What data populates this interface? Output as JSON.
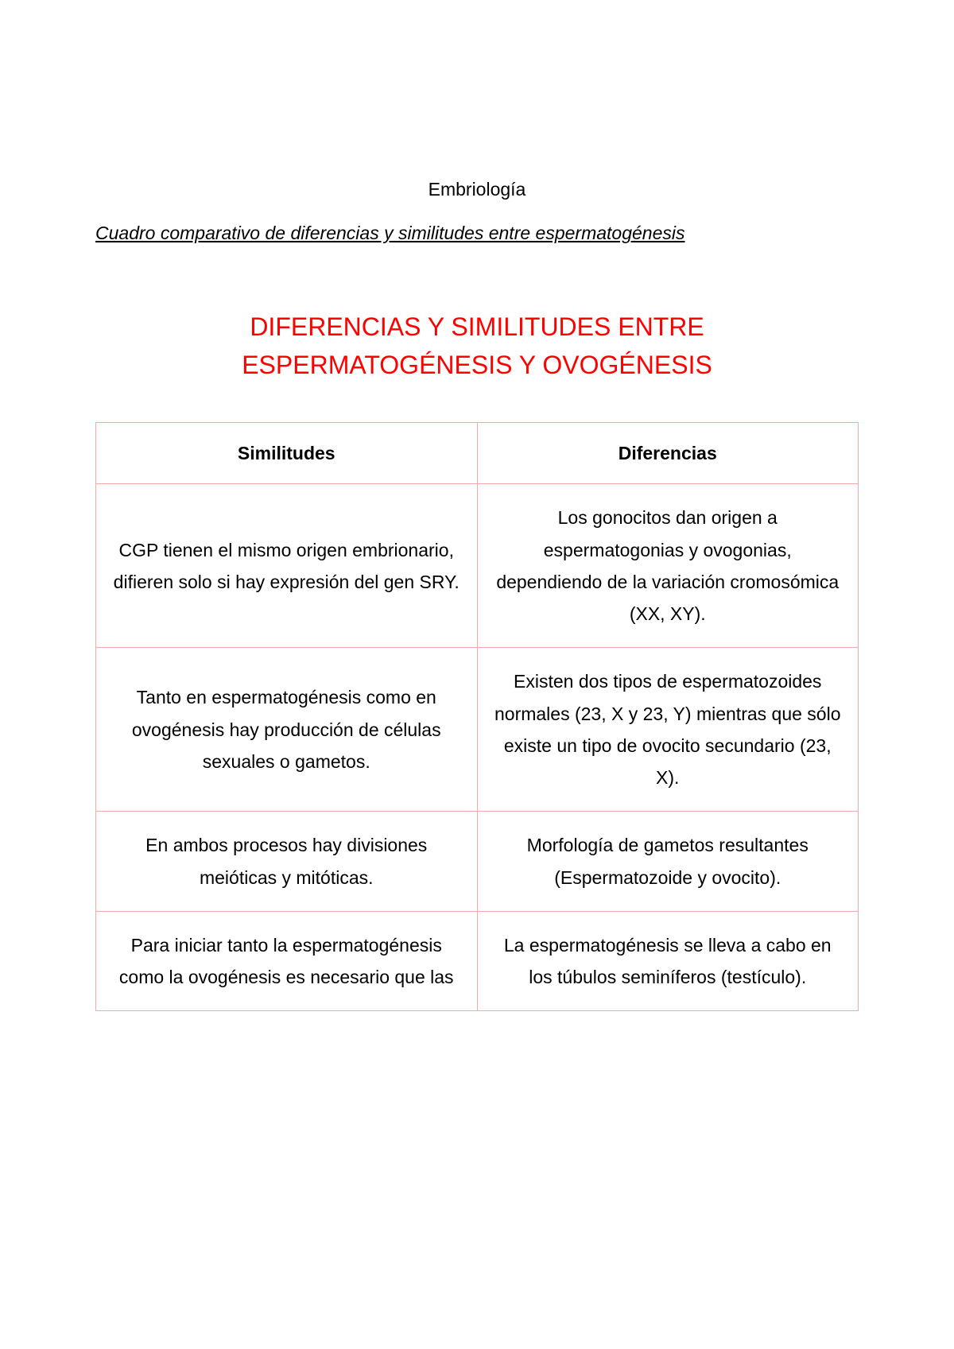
{
  "document": {
    "topic": "Embriología",
    "subtitle": "Cuadro comparativo de diferencias y similitudes entre espermatogénesis",
    "mainTitle": "DIFERENCIAS Y SIMILITUDES ENTRE ESPERMATOGÉNESIS Y OVOGÉNESIS",
    "colors": {
      "title": "#ff0000",
      "text": "#000000",
      "border": "#f4a9a9",
      "background": "#ffffff"
    },
    "typography": {
      "topic_fontsize": 23,
      "subtitle_fontsize": 23,
      "title_fontsize": 32,
      "body_fontsize": 23,
      "font_family": "Arial"
    },
    "table": {
      "type": "table",
      "columns": [
        "Similitudes",
        "Diferencias"
      ],
      "rows": [
        [
          "CGP tienen el mismo origen embrionario, difieren solo si hay expresión del gen SRY.",
          "Los gonocitos dan origen a espermatogonias y ovogonias, dependiendo de la variación cromosómica (XX, XY)."
        ],
        [
          "Tanto en espermatogénesis como en ovogénesis hay producción de células sexuales o gametos.",
          "Existen dos tipos de espermatozoides normales (23, X y 23, Y) mientras que sólo existe un tipo de ovocito secundario (23, X)."
        ],
        [
          "En ambos procesos hay divisiones meióticas y mitóticas.",
          "Morfología de gametos resultantes (Espermatozoide y ovocito)."
        ],
        [
          "Para iniciar tanto la espermatogénesis como la ovogénesis es necesario que las",
          "La espermatogénesis se lleva a cabo en los túbulos seminíferos (testículo)."
        ]
      ]
    }
  }
}
